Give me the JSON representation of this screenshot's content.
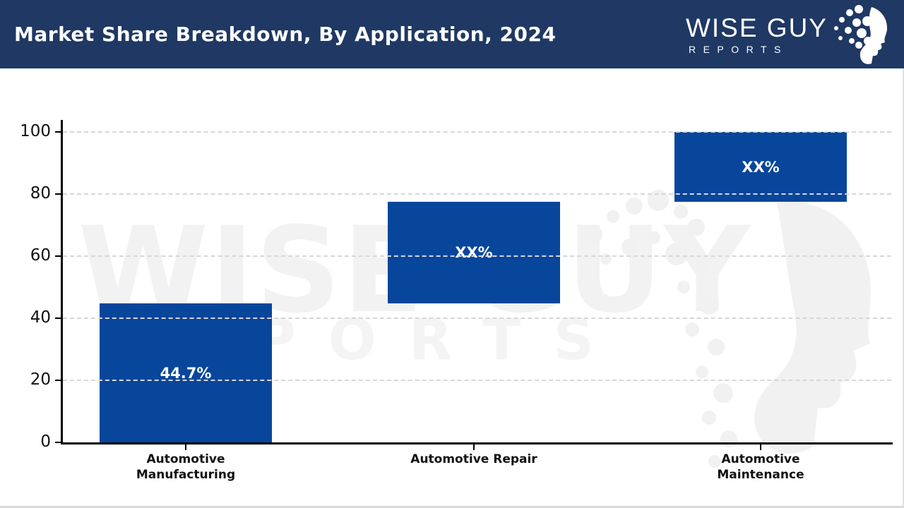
{
  "header": {
    "title": "Market Share Breakdown, By Application, 2024",
    "bg_color": "#1f3864",
    "logo": {
      "line1": "WISE GUY",
      "line2": "REPORTS"
    }
  },
  "watermark": {
    "line1": "WISE GUY",
    "line2": "REPORTS",
    "color": "#f2f2f2"
  },
  "chart_data": {
    "type": "bar",
    "subtype": "floating-segment-waterfall",
    "title": "Market Share Breakdown, By Application, 2024",
    "categories": [
      "Automotive Manufacturing",
      "Automotive Repair",
      "Automotive Maintenance"
    ],
    "tick_labels": [
      "Automotive\nManufacturing",
      "Automotive Repair",
      "Automotive\nMaintenance"
    ],
    "segments": [
      {
        "category": "Automotive Manufacturing",
        "start": 0,
        "end": 44.7,
        "label": "44.7%"
      },
      {
        "category": "Automotive Repair",
        "start": 44.7,
        "end": 77.5,
        "label": "XX%"
      },
      {
        "category": "Automotive Maintenance",
        "start": 77.5,
        "end": 100,
        "label": "XX%"
      }
    ],
    "xlabel": "",
    "ylabel": "",
    "ylim": [
      0,
      104
    ],
    "yticks": [
      0,
      20,
      40,
      60,
      80,
      100
    ],
    "grid": "horizontal-dashed",
    "legend": "none",
    "bar_color": "#08469b",
    "bar_label_color": "#ffffff",
    "grid_color": "#d7d7d7",
    "axis_color": "#000000"
  }
}
